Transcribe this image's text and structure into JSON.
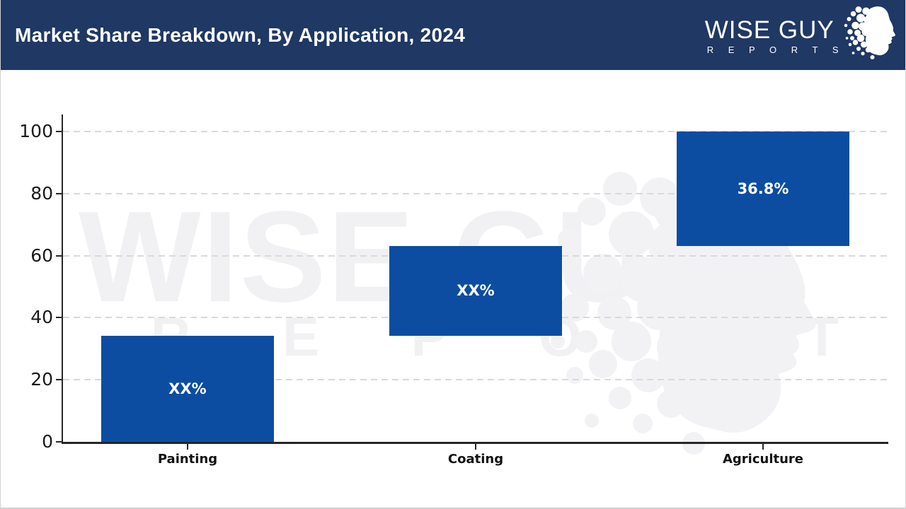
{
  "header": {
    "title": "Market Share Breakdown, By Application, 2024",
    "logo": {
      "brand_top": "WISE GUY",
      "brand_bottom": "R E P O R T S"
    }
  },
  "watermark": {
    "brand_top": "WISE GUY",
    "brand_bottom": "R E P O R T S"
  },
  "chart_data": {
    "type": "bar",
    "subtype": "waterfall",
    "title": "Market Share Breakdown, By Application, 2024",
    "categories": [
      "Painting",
      "Coating",
      "Agriculture"
    ],
    "segments": [
      {
        "category": "Painting",
        "start": 0,
        "end": 34.2,
        "label": "XX%"
      },
      {
        "category": "Coating",
        "start": 34.2,
        "end": 63.2,
        "label": "XX%"
      },
      {
        "category": "Agriculture",
        "start": 63.2,
        "end": 100,
        "label": "36.8%"
      }
    ],
    "xlabel": "",
    "ylabel": "",
    "ylim": [
      0,
      100
    ],
    "yticks": [
      0,
      20,
      40,
      60,
      80,
      100
    ],
    "grid": "horizontal-dashed",
    "legend": "none",
    "bar_color": "#0c4da2",
    "bar_label_color": "#ffffff"
  },
  "colors": {
    "header_bg": "#1f3864",
    "bar": "#0c4da2",
    "axis": "#262626",
    "grid": "#d9d9d9",
    "watermark": "#f1f1f3",
    "page_bg": "#ffffff"
  }
}
